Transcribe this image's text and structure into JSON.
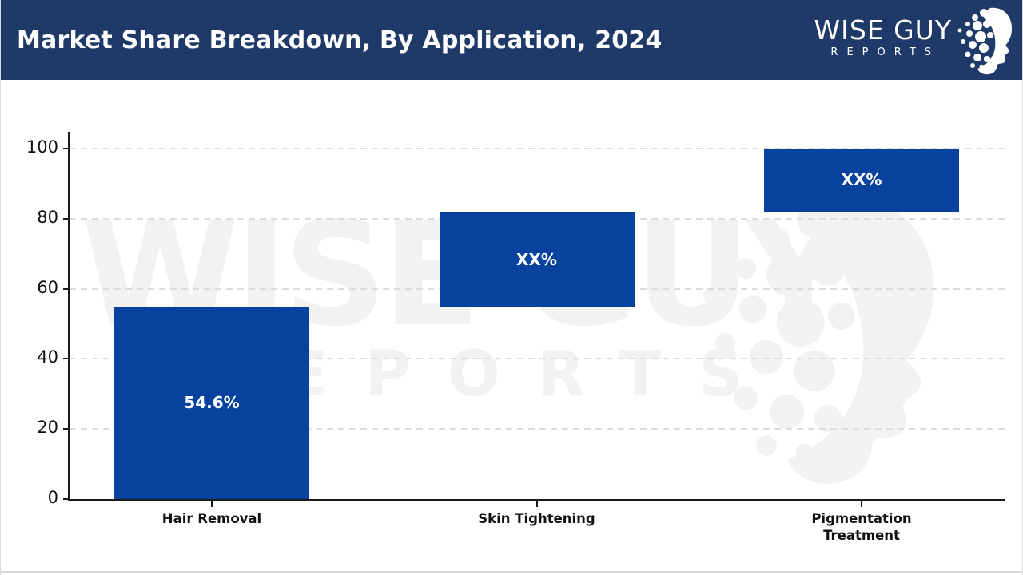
{
  "header": {
    "title": "Market Share Breakdown, By Application, 2024",
    "logo": {
      "line1": "WISE GUY",
      "line2": "REPORTS"
    }
  },
  "watermark": {
    "line1": "WISE GUY",
    "line2": "REPORTS"
  },
  "chart_data": {
    "type": "bar",
    "subtype": "waterfall-floating-segments",
    "title": "Market Share Breakdown, By Application, 2024",
    "categories": [
      "Hair Removal",
      "Skin Tightening",
      "Pigmentation Treatment"
    ],
    "segments": [
      {
        "category": "Hair Removal",
        "start": 0,
        "end": 54.6,
        "label": "54.6%"
      },
      {
        "category": "Skin Tightening",
        "start": 54.6,
        "end": 81.8,
        "label": "XX%"
      },
      {
        "category": "Pigmentation Treatment",
        "start": 81.8,
        "end": 99.8,
        "label": "XX%"
      }
    ],
    "xlabel": "",
    "ylabel": "",
    "ylim": [
      0,
      105
    ],
    "yticks": [
      0,
      20,
      40,
      60,
      80,
      100
    ],
    "grid": "horizontal dashed",
    "legend": "none",
    "colors": {
      "bar": "#07439e",
      "bar_label": "#ffffff",
      "axis": "#1a1a1a",
      "gridline": "#dcdcdc",
      "header_bg": "#1f3a68",
      "watermark": "#f2f2f2"
    }
  }
}
